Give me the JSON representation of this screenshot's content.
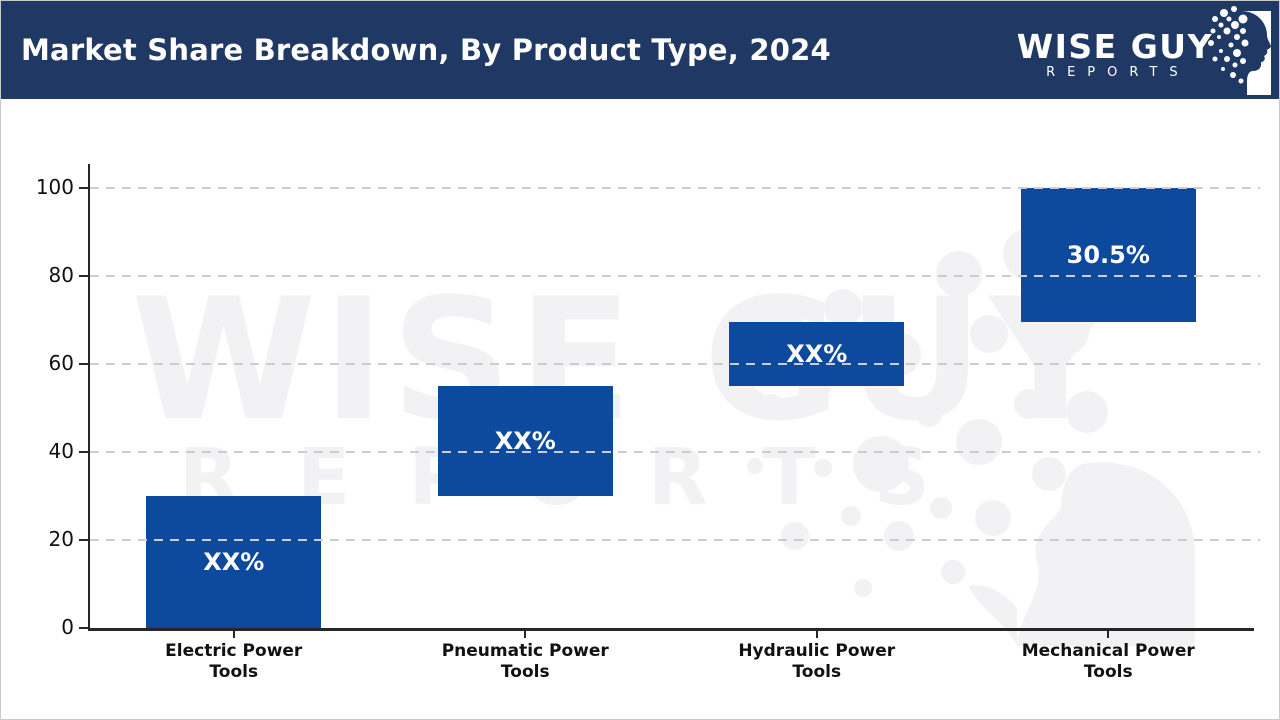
{
  "header": {
    "title": "Market Share Breakdown, By Product Type, 2024"
  },
  "logo": {
    "line1": "WISE GUY",
    "line2": "REPORTS"
  },
  "watermark": {
    "line1": "WISE GUY",
    "line2": "REPORTS"
  },
  "colors": {
    "header_bg": "#203864",
    "bar": "#0d4a9e",
    "grid": "#cdcdcd",
    "axis": "#262626",
    "watermark": "#f2f2f4",
    "page_border": "#c9c9c9"
  },
  "chart_data": {
    "type": "bar",
    "subtype": "floating-waterfall",
    "title": "Market Share Breakdown, By Product Type, 2024",
    "categories": [
      "Electric Power Tools",
      "Pneumatic Power Tools",
      "Hydraulic Power Tools",
      "Mechanical Power Tools"
    ],
    "category_label_lines": [
      [
        "Electric Power",
        "Tools"
      ],
      [
        "Pneumatic Power",
        "Tools"
      ],
      [
        "Hydraulic Power",
        "Tools"
      ],
      [
        "Mechanical Power",
        "Tools"
      ]
    ],
    "bars": [
      {
        "category": "Electric Power Tools",
        "start": 0,
        "end": 30,
        "label": "XX%"
      },
      {
        "category": "Pneumatic Power Tools",
        "start": 30,
        "end": 55,
        "label": "XX%"
      },
      {
        "category": "Hydraulic Power Tools",
        "start": 55,
        "end": 69.5,
        "label": "XX%"
      },
      {
        "category": "Mechanical Power Tools",
        "start": 69.5,
        "end": 100,
        "label": "30.5%"
      }
    ],
    "ylim": [
      0,
      100
    ],
    "yticks": [
      0,
      20,
      40,
      60,
      80,
      100
    ],
    "grid": "horizontal-dashed",
    "legend": "none",
    "bar_color": "#0d4a9e",
    "bar_label_color": "#ffffff"
  }
}
